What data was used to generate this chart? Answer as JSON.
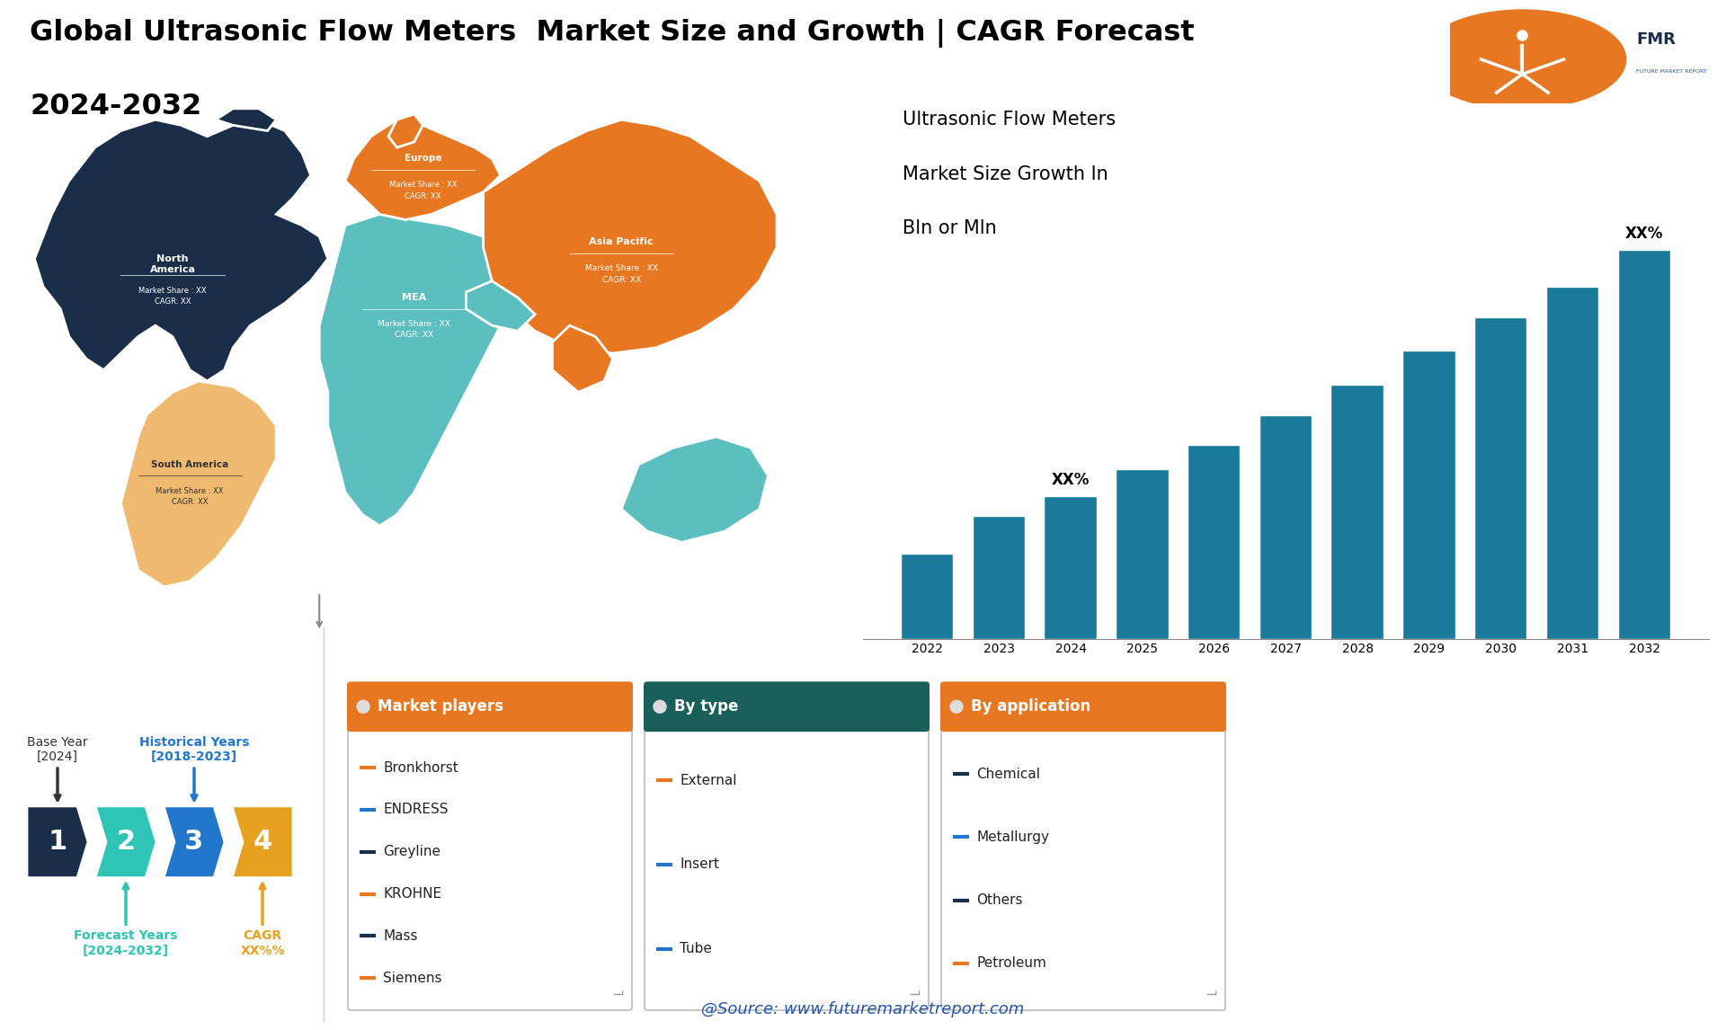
{
  "title_line1": "Global Ultrasonic Flow Meters  Market Size and Growth | CAGR Forecast",
  "title_line2": "2024-2032",
  "title_fontsize": 24,
  "background_color": "#ffffff",
  "chart_title_line1": "Ultrasonic Flow Meters",
  "chart_title_line2": "Market Size Growth In",
  "chart_title_line3": "Bln or Mln",
  "bar_years": [
    2022,
    2023,
    2024,
    2025,
    2026,
    2027,
    2028,
    2029,
    2030,
    2031,
    2032
  ],
  "bar_values": [
    2.5,
    3.6,
    4.2,
    5.0,
    5.7,
    6.6,
    7.5,
    8.5,
    9.5,
    10.4,
    11.5
  ],
  "bar_color": "#1a7a9a",
  "bar_label_idx_1": 2,
  "bar_label_idx_2": 10,
  "bar_label_text": "XX%",
  "sections": [
    {
      "title": "Market players",
      "title_bg": "#E87722",
      "dot_color": "#cccccc",
      "items": [
        "Bronkhorst",
        "ENDRESS",
        "Greyline",
        "KROHNE",
        "Mass",
        "Siemens"
      ],
      "item_dash_colors": [
        "#E87722",
        "#2277CC",
        "#1a2e4a",
        "#E87722",
        "#1a2e4a",
        "#E87722"
      ]
    },
    {
      "title": "By type",
      "title_bg": "#1a5f5a",
      "dot_color": "#aaaaaa",
      "items": [
        "External",
        "Insert",
        "Tube"
      ],
      "item_dash_colors": [
        "#E87722",
        "#2277CC",
        "#2277CC"
      ]
    },
    {
      "title": "By application",
      "title_bg": "#E87722",
      "dot_color": "#cccccc",
      "items": [
        "Chemical",
        "Metallurgy",
        "Others",
        "Petroleum"
      ],
      "item_dash_colors": [
        "#1a2e4a",
        "#2277CC",
        "#1a2e4a",
        "#E87722"
      ]
    }
  ],
  "source_text": "@Source: www.futuremarketreport.com",
  "source_color": "#2255AA"
}
